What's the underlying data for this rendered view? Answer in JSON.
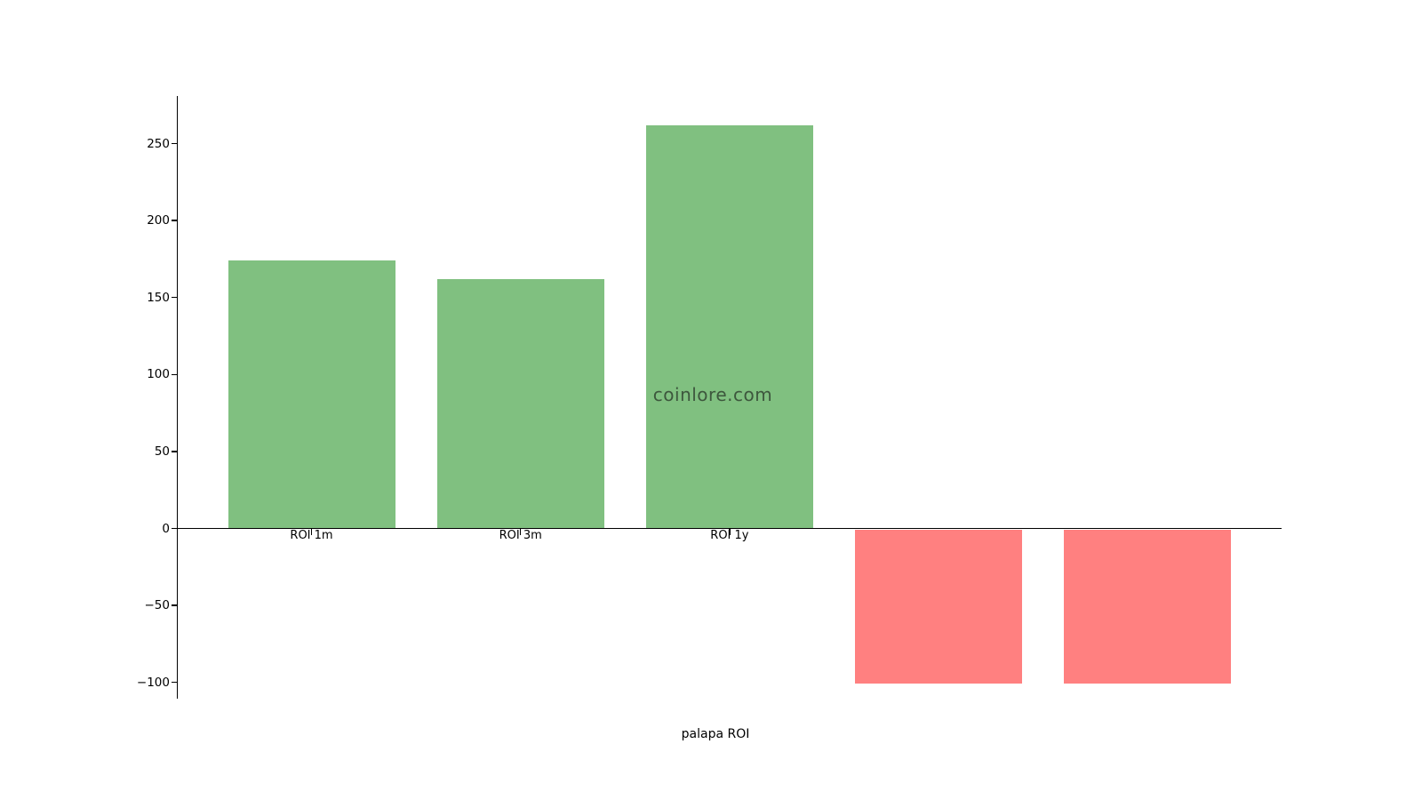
{
  "watermark": {
    "text": "coinlore.com",
    "color": "#3d573d"
  },
  "chart_data": {
    "type": "bar",
    "xlabel": "palapa ROI",
    "categories": [
      "ROI 1m",
      "ROI 3m",
      "ROI 1y",
      "",
      ""
    ],
    "values": [
      174,
      162,
      262,
      -100,
      -100
    ],
    "yticks": [
      250,
      200,
      150,
      100,
      50,
      0,
      -50,
      -100
    ],
    "ylim": [
      -111,
      281
    ],
    "bar_color_positive": "#80c080",
    "bar_color_negative": "#ff8080",
    "axis_color": "#000000",
    "background": "#ffffff",
    "grid": false,
    "legend_position": "none"
  }
}
